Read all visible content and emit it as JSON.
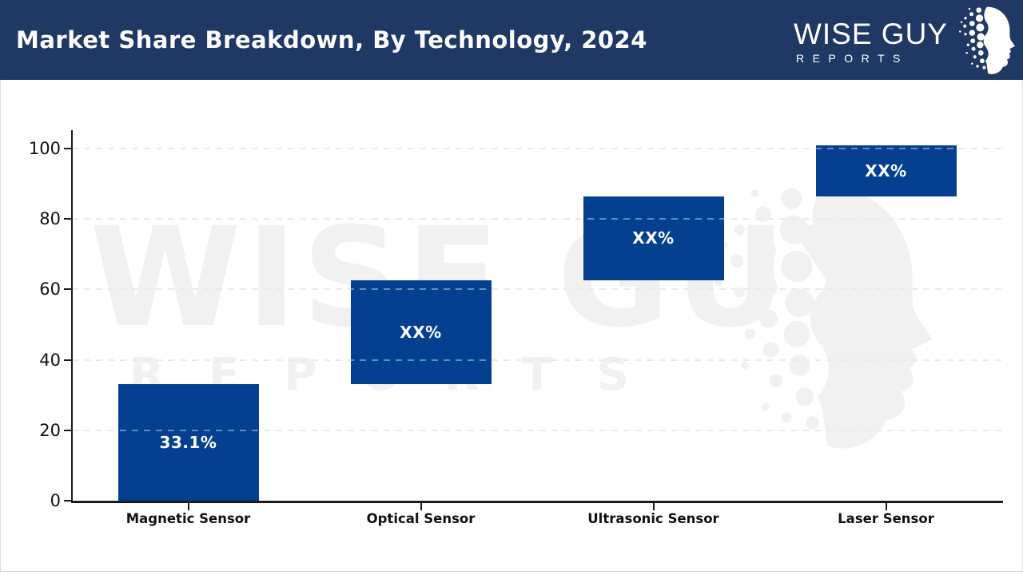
{
  "header": {
    "title": "Market Share Breakdown, By Technology, 2024",
    "logo": {
      "line1": "WISE GUY",
      "line2": "REPORTS"
    }
  },
  "watermark": {
    "line1": "WISE GUY",
    "line2": "REPORTS"
  },
  "chart_data": {
    "type": "bar",
    "subtype": "floating-waterfall",
    "title": "Market Share Breakdown, By Technology, 2024",
    "categories": [
      "Magnetic Sensor",
      "Optical Sensor",
      "Ultrasonic Sensor",
      "Laser Sensor"
    ],
    "segments": [
      {
        "category": "Magnetic Sensor",
        "start": 0,
        "end": 33.1,
        "label": "33.1%"
      },
      {
        "category": "Optical Sensor",
        "start": 33.1,
        "end": 62.7,
        "label": "XX%"
      },
      {
        "category": "Ultrasonic Sensor",
        "start": 62.7,
        "end": 86.4,
        "label": "XX%"
      },
      {
        "category": "Laser Sensor",
        "start": 86.4,
        "end": 100.9,
        "label": "XX%"
      }
    ],
    "xlabel": "",
    "ylabel": "",
    "ylim": [
      0,
      105
    ],
    "yticks": [
      0,
      20,
      40,
      60,
      80,
      100
    ],
    "grid": "horizontal-dashed",
    "legend": "none",
    "colors": {
      "bar": "#04408f",
      "bar_label": "#ffffff",
      "header_bg": "#1f3864",
      "grid": "#dcdcdc",
      "axis": "#1a1a1a",
      "watermark": "#f1f1f1"
    }
  }
}
